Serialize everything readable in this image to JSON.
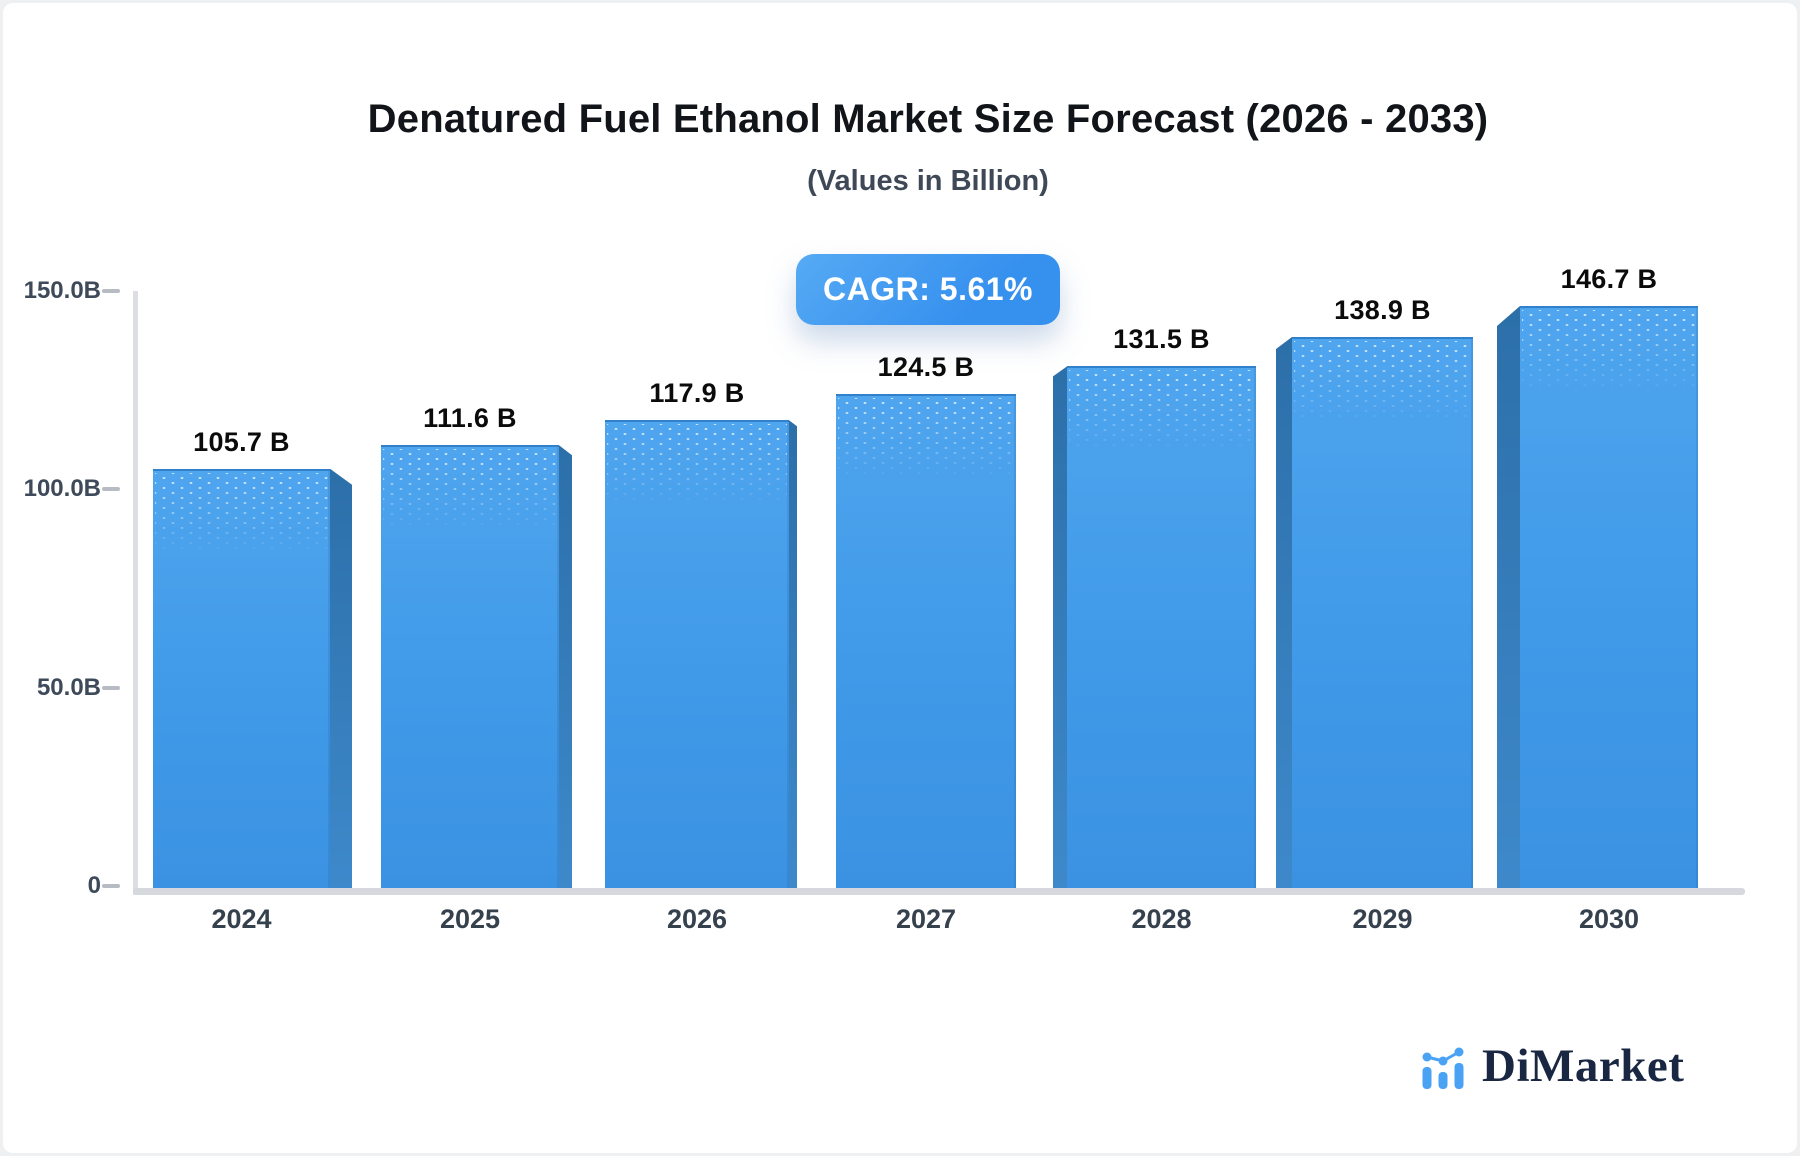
{
  "header": {
    "title": "Denatured Fuel Ethanol Market Size Forecast (2026 - 2033)",
    "subtitle": "(Values in Billion)"
  },
  "cagr_badge": {
    "label": "CAGR: 5.61%",
    "background": "#3e97ef",
    "text_color": "#ffffff"
  },
  "chart_data": {
    "type": "bar",
    "title": "Denatured Fuel Ethanol Market Size Forecast (2026 - 2033)",
    "subtitle": "(Values in Billion)",
    "unit": "Billion",
    "categories": [
      "2024",
      "2025",
      "2026",
      "2027",
      "2028",
      "2029",
      "2030"
    ],
    "values": [
      105.7,
      111.6,
      117.9,
      124.5,
      131.5,
      138.9,
      146.7
    ],
    "value_labels": [
      "105.7 B",
      "111.6 B",
      "117.9 B",
      "124.5 B",
      "131.5 B",
      "138.9 B",
      "146.7 B"
    ],
    "cagr_percent": "5.61%",
    "xlabel": "",
    "ylabel": "",
    "ylim": [
      0,
      150
    ],
    "yticks": [
      {
        "value": 0,
        "label": "0"
      },
      {
        "value": 50,
        "label": "50.0B"
      },
      {
        "value": 100,
        "label": "100.0B"
      },
      {
        "value": 150,
        "label": "150.0B"
      }
    ],
    "grid": false,
    "legend": "none",
    "bar_style": "3d-perspective",
    "bar_face_color_top": "#4fa5ee",
    "bar_face_color_bottom": "#3b92e2",
    "bar_side_color_top": "#2c6fa9",
    "bar_side_color_bottom": "#3e89cb",
    "axis_color": "#d5d8dd",
    "tick_label_color": "#3e4a59",
    "category_label_color": "#36414e",
    "value_label_color": "#0b0b0b"
  },
  "logo": {
    "text": "DiMarket",
    "icon": "mini-bar-chart-logo-icon",
    "text_color": "#1a2742",
    "accent_color": "#4aa2f5"
  }
}
